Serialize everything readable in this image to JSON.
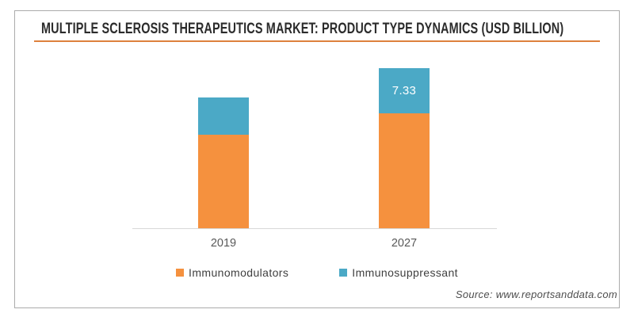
{
  "header": {
    "title": "MULTIPLE SCLEROSIS THERAPEUTICS MARKET: PRODUCT TYPE DYNAMICS (USD BILLION)"
  },
  "footer": {
    "source": "Source: www.reportsanddata.com"
  },
  "colors": {
    "immunomodulators_orange": "#f5913e",
    "immunosuppressant_blue": "#4ba9c6",
    "title_underline_orange": "#de813d",
    "axis_line_gray": "#d8d8d8",
    "frame_border_gray": "#ababab",
    "title_text": "#2b2b2b",
    "bar_value_label_text": "#ffffff"
  },
  "legend": {
    "items": [
      {
        "label": "Immunomodulators"
      },
      {
        "label": "Immunosuppressant"
      }
    ]
  },
  "chart_data": {
    "type": "bar",
    "stacked": true,
    "title": "MULTIPLE SCLEROSIS THERAPEUTICS MARKET: PRODUCT TYPE DYNAMICS (USD BILLION)",
    "categories": [
      "2019",
      "2027"
    ],
    "series": [
      {
        "name": "Immunomodulators",
        "color": "#f5913e",
        "values": [
          15.0,
          18.3
        ]
      },
      {
        "name": "Immunosuppressant",
        "color": "#4ba9c6",
        "values": [
          5.9,
          7.33
        ]
      }
    ],
    "data_labels": [
      {
        "category": "2027",
        "series": "Immunosuppressant",
        "text": "7.33"
      }
    ],
    "xlabel": "",
    "ylabel": "",
    "ylim": [
      0,
      26
    ],
    "grid": false,
    "y_axis_shown": false,
    "legend_position": "bottom"
  }
}
